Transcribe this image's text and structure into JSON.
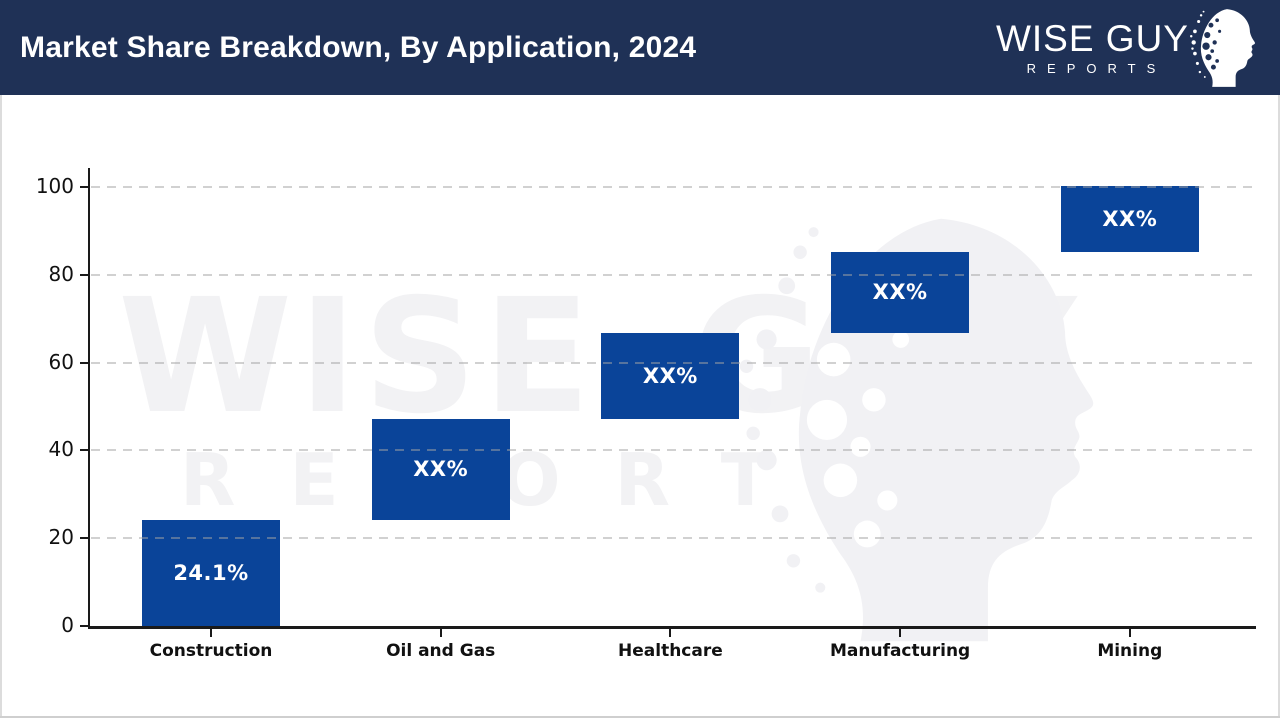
{
  "header": {
    "title": "Market Share Breakdown, By Application, 2024",
    "bg_color": "#1f3156",
    "logo": {
      "line1": "WISE GUY",
      "line2": "REPORTS"
    }
  },
  "watermark": {
    "line1": "WISE GUY",
    "line2": "REPORTS"
  },
  "chart_data": {
    "type": "bar",
    "subtype": "floating-waterfall",
    "title": "Market Share Breakdown, By Application, 2024",
    "categories": [
      "Construction",
      "Oil and Gas",
      "Healthcare",
      "Manufacturing",
      "Mining"
    ],
    "segments": [
      {
        "category": "Construction",
        "start": 0,
        "end": 24.1,
        "label": "24.1%"
      },
      {
        "category": "Oil and Gas",
        "start": 24.1,
        "end": 47.2,
        "label": "XX%"
      },
      {
        "category": "Healthcare",
        "start": 47.2,
        "end": 66.8,
        "label": "XX%"
      },
      {
        "category": "Manufacturing",
        "start": 66.8,
        "end": 85.2,
        "label": "XX%"
      },
      {
        "category": "Mining",
        "start": 85.2,
        "end": 100.2,
        "label": "XX%"
      }
    ],
    "ylim": [
      0,
      100
    ],
    "yticks": [
      0,
      20,
      40,
      60,
      80,
      100
    ],
    "xlabel": "",
    "ylabel": "",
    "grid": true,
    "bar_color": "#0a4499",
    "gridline_color": "#dcdcdc",
    "axis_color": "#1a1a1a",
    "bar_label_color": "#ffffff"
  }
}
